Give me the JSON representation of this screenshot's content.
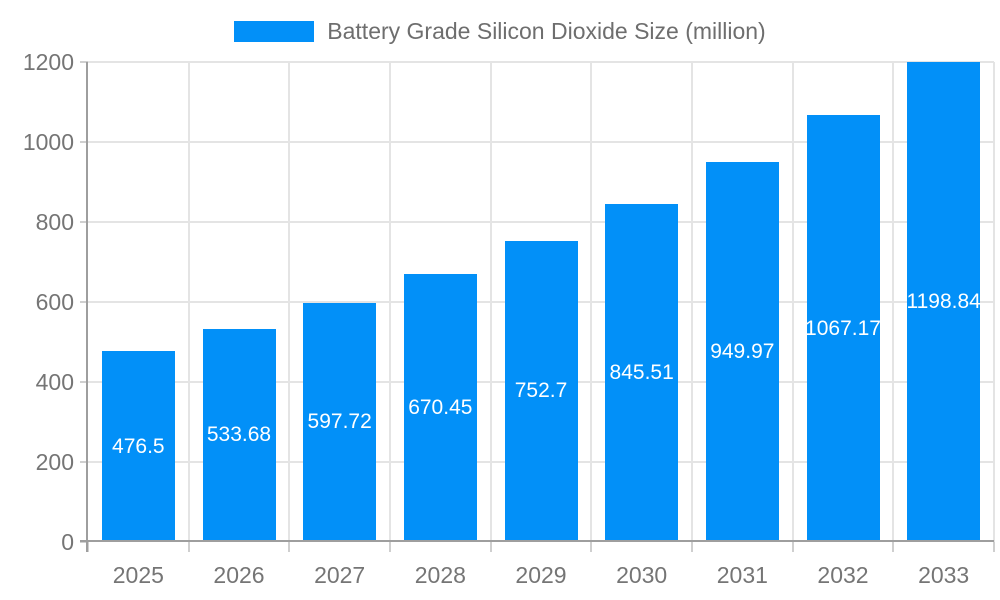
{
  "legend": {
    "label": "Battery Grade Silicon Dioxide Size (million)"
  },
  "chart_data": {
    "type": "bar",
    "title": "Battery Grade Silicon Dioxide Size (million)",
    "categories": [
      "2025",
      "2026",
      "2027",
      "2028",
      "2029",
      "2030",
      "2031",
      "2032",
      "2033"
    ],
    "values": [
      476.5,
      533.68,
      597.72,
      670.45,
      752.7,
      845.51,
      949.97,
      1067.17,
      1198.84
    ],
    "bar_labels": [
      "476.5",
      "533.68",
      "597.72",
      "670.45",
      "752.7",
      "845.51",
      "949.97",
      "1067.17",
      "1198.84"
    ],
    "xlabel": "",
    "ylabel": "",
    "ylim": [
      0,
      1200
    ],
    "yticks": [
      0,
      200,
      400,
      600,
      800,
      1000,
      1200
    ],
    "grid": true,
    "legend_position": "top-center",
    "colors": {
      "bar": "#0290F8",
      "grid": "#E4E4E4",
      "axis": "#9E9E9E",
      "tick": "#CFCFCF",
      "tick_label": "#757575",
      "bar_label": "#FFFFFF",
      "legend_text": "#6E6E6E",
      "background": "#FFFFFF"
    }
  }
}
